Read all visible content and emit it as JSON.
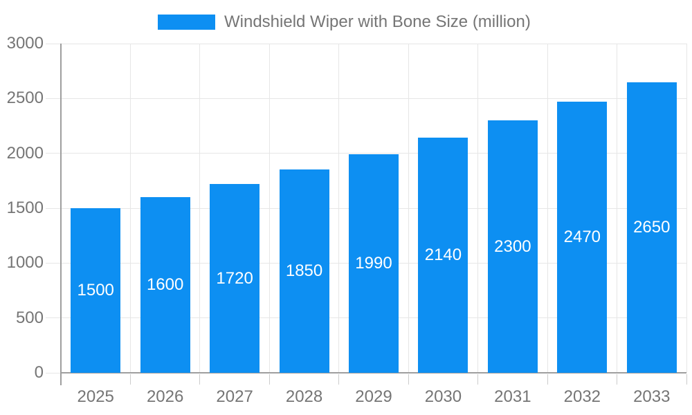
{
  "legend": {
    "label": "Windshield Wiper with Bone Size (million)"
  },
  "chart_data": {
    "type": "bar",
    "title": "Windshield Wiper with Bone Size (million)",
    "categories": [
      "2025",
      "2026",
      "2027",
      "2028",
      "2029",
      "2030",
      "2031",
      "2032",
      "2033"
    ],
    "series": [
      {
        "name": "Windshield Wiper with Bone Size (million)",
        "values": [
          1500,
          1600,
          1720,
          1850,
          1990,
          2140,
          2300,
          2470,
          2650
        ]
      }
    ],
    "bar_labels": [
      1500,
      1600,
      1720,
      1850,
      1990,
      2140,
      2300,
      2470,
      2650
    ],
    "xlabel": "",
    "ylabel": "",
    "ylim": [
      0,
      3000
    ],
    "yticks": [
      0,
      500,
      1000,
      1500,
      2000,
      2500,
      3000
    ],
    "grid": true,
    "legend_position": "top",
    "colors": {
      "bar": "#0d8ff2",
      "grid": "#e6e6e6",
      "axis": "#9e9e9e",
      "minor_tick": "#cccccc",
      "tick_text": "#757575",
      "bar_label_text": "#ffffff",
      "background": "#ffffff"
    }
  }
}
